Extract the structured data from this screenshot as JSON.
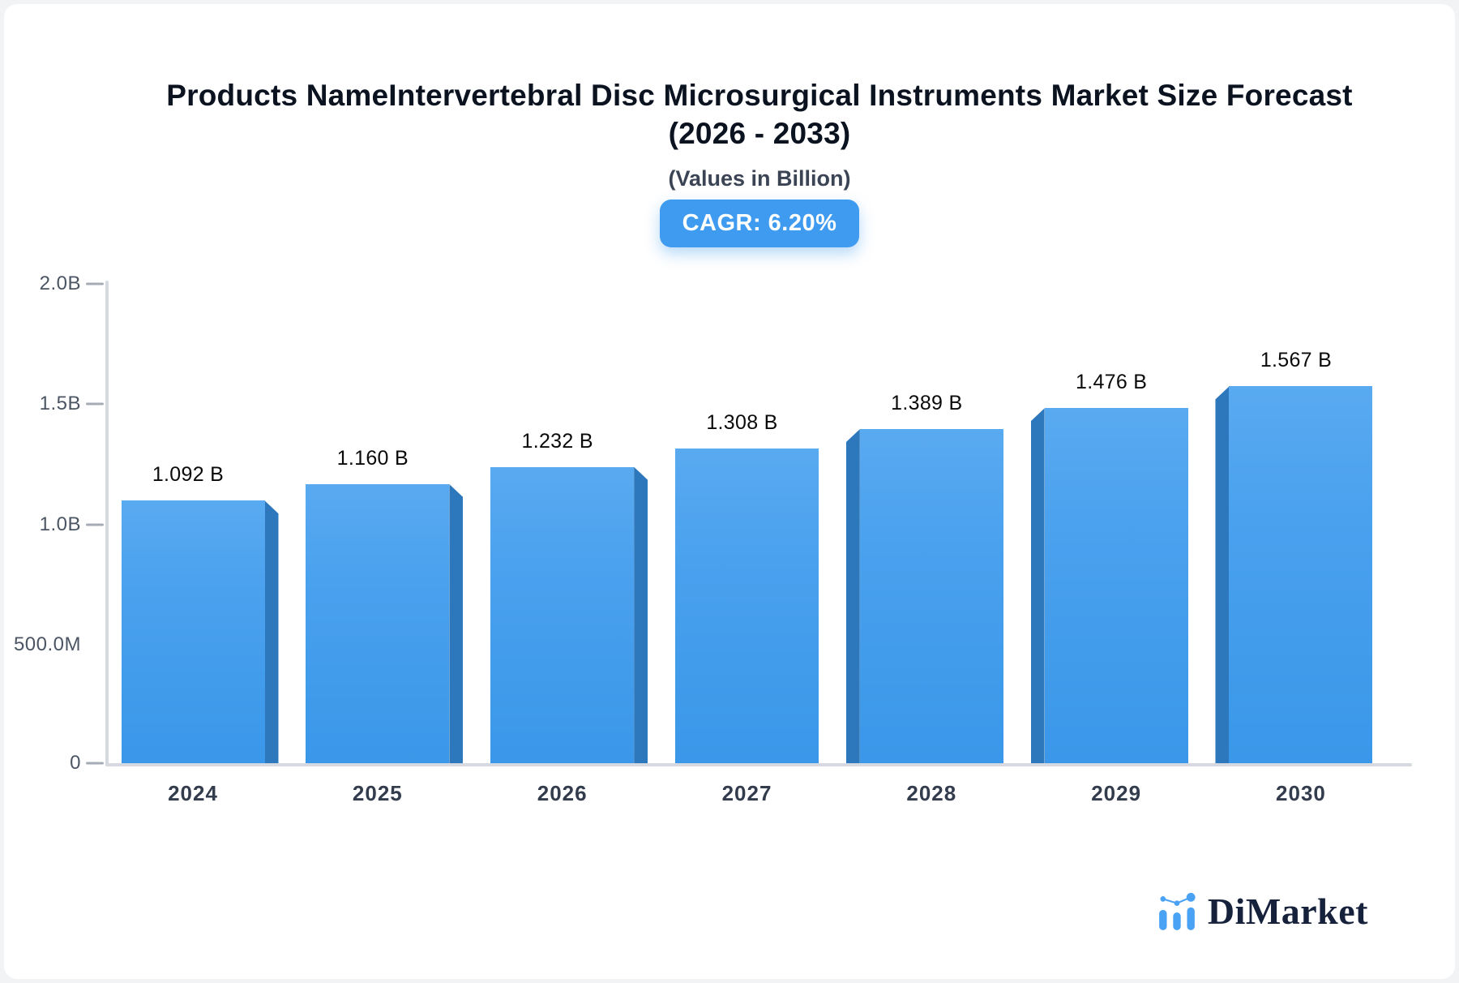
{
  "header": {
    "title_line1": "Products NameIntervertebral Disc Microsurgical Instruments Market Size Forecast",
    "title_line2": "(2026 - 2033)",
    "subtitle": "(Values in Billion)",
    "cagr_badge": "CAGR: 6.20%"
  },
  "colors": {
    "bar_face_top": "#59aaf0",
    "bar_face_bottom": "#3a97e9",
    "bar_side": "#2d78bc",
    "badge_bg": "#3f9bf0",
    "axis": "#d6d9df",
    "logo_blue": "#4aa2f5",
    "logo_text": "#16213b"
  },
  "chart_data": {
    "type": "bar",
    "title": "Products NameIntervertebral Disc Microsurgical Instruments Market Size Forecast (2026 - 2033)",
    "subtitle": "(Values in Billion)",
    "categories": [
      "2024",
      "2025",
      "2026",
      "2027",
      "2028",
      "2029",
      "2030"
    ],
    "values": [
      1.092,
      1.16,
      1.232,
      1.308,
      1.389,
      1.476,
      1.567
    ],
    "value_labels": [
      "1.092 B",
      "1.160 B",
      "1.232 B",
      "1.308 B",
      "1.389 B",
      "1.476 B",
      "1.567 B"
    ],
    "xlabel": "",
    "ylabel": "",
    "ylim": [
      0,
      2.0
    ],
    "grid": false,
    "legend": "none",
    "y_ticks": [
      {
        "label": "2.0B",
        "value": 2.0,
        "dash": true
      },
      {
        "label": "1.5B",
        "value": 1.5,
        "dash": true
      },
      {
        "label": "1.0B",
        "value": 1.0,
        "dash": true
      },
      {
        "label": "500.0M",
        "value": 0.5,
        "dash": false
      },
      {
        "label": "0",
        "value": 0.0,
        "dash": true
      }
    ]
  },
  "logo": {
    "text": "DiMarket",
    "icon": "bar-line-chart-icon"
  }
}
